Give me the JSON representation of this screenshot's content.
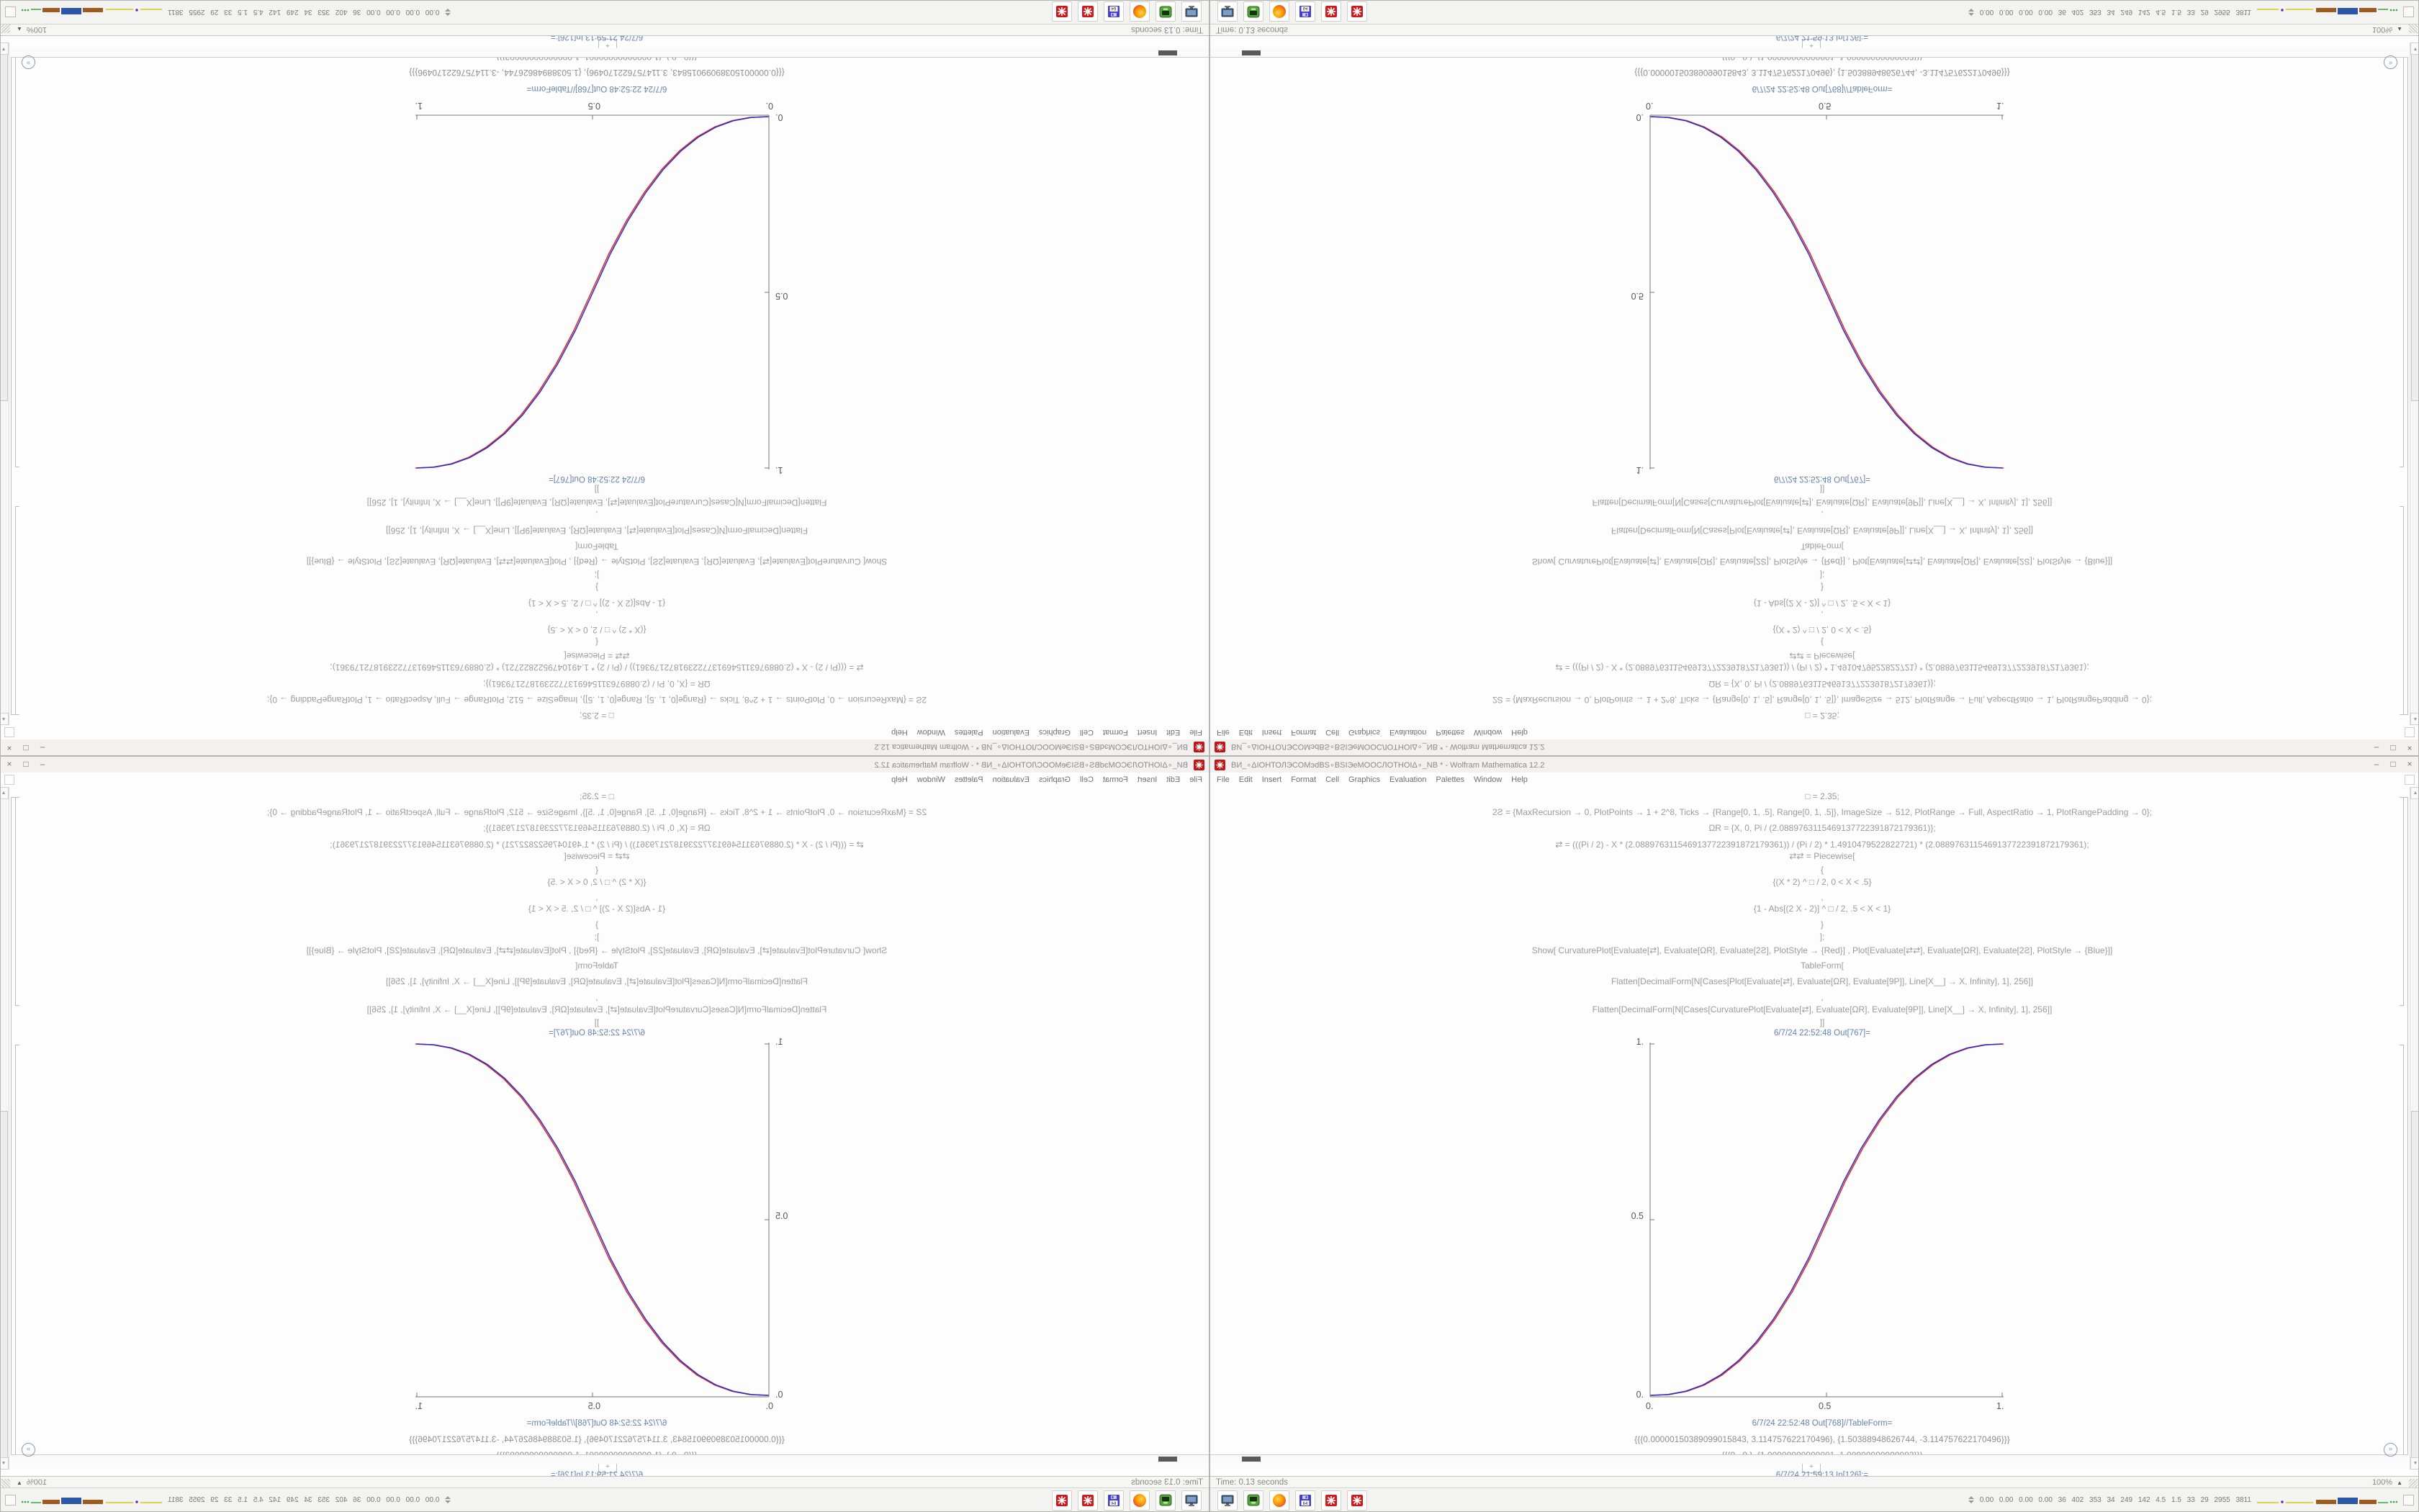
{
  "app": {
    "title": "ВИ_∘ΔІОНТОЛЭСОМэdВЅ∘ВЅІЭеМООСЛОТНОІΔ∘_NB * - Wolfram Mathematica 12.2",
    "menu": [
      "File",
      "Edit",
      "Insert",
      "Format",
      "Cell",
      "Graphics",
      "Evaluation",
      "Palettes",
      "Window",
      "Help"
    ],
    "window_buttons": {
      "minimize": "–",
      "maximize": "□",
      "close": "×"
    }
  },
  "notebook": {
    "lines": [
      "□ = 2.35;",
      "2Ƨ = {MaxRecursion → 0, PlotPoints → 1 + 2^8, Ticks → {Range[0, 1, .5], Range[0, 1, .5]}, ImageSize → 512, PlotRange → Full, AspectRatio → 1, PlotRangePadding → 0};",
      "ΩR = {X, 0, Pi / (2.0889763115469137722391872179361)};",
      "⇄ = (((Pi / 2) - X * (2.0889763115469137722391872179361)) / (Pi / 2) * 1.4910479522822721) * (2.0889763115469137722391872179361);",
      "⇄⇄ = Piecewise[",
      "{",
      "{(X * 2) ^ □ / 2, 0 < X < .5}",
      ",",
      "{1 - Abs[(2 X - 2)] ^ □ / 2, .5 < X < 1}",
      "}",
      "];",
      "Show[  CurvaturePlot[Evaluate[⇄], Evaluate[ΩR], Evaluate[2Ƨ], PlotStyle → {Red}]  ,   Plot[Evaluate[⇄⇄], Evaluate[ΩR], Evaluate[2Ƨ], PlotStyle → {Blue}]]",
      "TableForm[",
      "Flatten[DecimalForm[N[Cases[Plot[Evaluate[⇄], Evaluate[ΩR], Evaluate[9Ρ]], Line[X__] → X, Infinity], 1], 256]]",
      ",",
      "Flatten[DecimalForm[N[Cases[CurvaturePlot[Evaluate[⇄], Evaluate[ΩR], Evaluate[9Ρ]], Line[X__] → X, Infinity], 1], 256]]",
      "]]"
    ],
    "cell_labels": {
      "out_plot": "6/7/24 22:52:48 Out[767]=",
      "out_table": "6/7/24 22:52:48 Out[768]//TableForm=",
      "in_next": "6/7/24 21:59:13 In[126]:=",
      "insert_plus": "+"
    },
    "outputs": {
      "row1": "{{{0.00000150389099015843, 3.114757622170496}, {1.50388948626744, -3.114757622170496}}}",
      "row2": "{{{0., 0.}, {1.00000000000001, 1.00000000000003}}}"
    }
  },
  "plot": {
    "ylabels": [
      "1.",
      "0.5",
      "0."
    ],
    "xlabels": [
      "0.",
      "0.5",
      "1."
    ]
  },
  "chart_data": {
    "type": "line",
    "title": "",
    "xlabel": "",
    "ylabel": "",
    "xlim": [
      0,
      1
    ],
    "ylim": [
      0,
      1
    ],
    "xticks": [
      0,
      0.5,
      1
    ],
    "yticks": [
      0,
      0.5,
      1
    ],
    "grid": false,
    "legend": "none",
    "series": [
      {
        "name": "CurvaturePlot (Red)",
        "color": "#dd2c1e",
        "points": [
          [
            0,
            0
          ],
          [
            0.05,
            0.0022
          ],
          [
            0.1,
            0.0114
          ],
          [
            0.15,
            0.0295
          ],
          [
            0.2,
            0.058
          ],
          [
            0.25,
            0.098
          ],
          [
            0.3,
            0.1505
          ],
          [
            0.35,
            0.2163
          ],
          [
            0.4,
            0.296
          ],
          [
            0.45,
            0.3903
          ],
          [
            0.5,
            0.5
          ],
          [
            0.55,
            0.6097
          ],
          [
            0.6,
            0.704
          ],
          [
            0.65,
            0.7837
          ],
          [
            0.7,
            0.8495
          ],
          [
            0.75,
            0.902
          ],
          [
            0.8,
            0.942
          ],
          [
            0.85,
            0.9705
          ],
          [
            0.9,
            0.9886
          ],
          [
            0.95,
            0.9978
          ],
          [
            1,
            1
          ]
        ]
      },
      {
        "name": "Plot (Blue)",
        "color": "#2c2cd0",
        "points": [
          [
            0,
            0
          ],
          [
            0.05,
            0.0022
          ],
          [
            0.1,
            0.0114
          ],
          [
            0.15,
            0.0295
          ],
          [
            0.2,
            0.058
          ],
          [
            0.25,
            0.098
          ],
          [
            0.3,
            0.1505
          ],
          [
            0.35,
            0.2163
          ],
          [
            0.4,
            0.296
          ],
          [
            0.45,
            0.3903
          ],
          [
            0.5,
            0.5
          ],
          [
            0.55,
            0.6097
          ],
          [
            0.6,
            0.704
          ],
          [
            0.65,
            0.7837
          ],
          [
            0.7,
            0.8495
          ],
          [
            0.75,
            0.902
          ],
          [
            0.8,
            0.942
          ],
          [
            0.85,
            0.9705
          ],
          [
            0.9,
            0.9886
          ],
          [
            0.95,
            0.9978
          ],
          [
            1,
            1
          ]
        ]
      }
    ]
  },
  "statusbar": {
    "time": "Time: 0.13 seconds",
    "zoom": "100%"
  },
  "taskbar": {
    "icons": [
      "system-monitor",
      "green-emulator",
      "firefox",
      "floppy-64",
      "mathematica-red",
      "mathematica-red"
    ],
    "floppy_label": "64"
  },
  "tray": {
    "stats": "0.00 0.00 0.00 0.00 36 402 353 34 249 142 4.5 1.5 33 29 2955 3811"
  }
}
